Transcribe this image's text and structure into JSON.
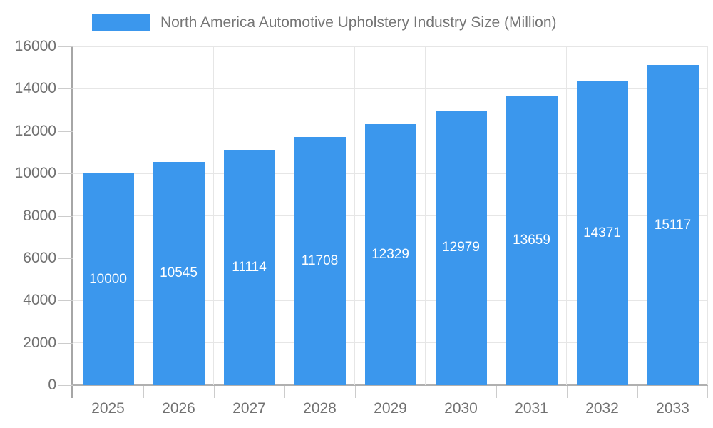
{
  "legend": {
    "label": "North America Automotive Upholstery Industry Size (Million)"
  },
  "chart_data": {
    "type": "bar",
    "title": "North America Automotive Upholstery Industry Size (Million)",
    "categories": [
      "2025",
      "2026",
      "2027",
      "2028",
      "2029",
      "2030",
      "2031",
      "2032",
      "2033"
    ],
    "values": [
      10000,
      10545,
      11114,
      11708,
      12329,
      12979,
      13659,
      14371,
      15117
    ],
    "value_labels": [
      "10000",
      "10545",
      "11114",
      "11708",
      "12329",
      "12979",
      "13659",
      "14371",
      "15117"
    ],
    "xlabel": "",
    "ylabel": "",
    "ylim": [
      0,
      16000
    ],
    "ytick_step": 2000,
    "yticks": [
      0,
      2000,
      4000,
      6000,
      8000,
      10000,
      12000,
      14000,
      16000
    ],
    "grid": true,
    "legend_position": "top"
  },
  "colors": {
    "bar": "#3b97ed",
    "grid": "#e6e6e6",
    "axis_line": "#a6a6a6",
    "tick": "#cccccc",
    "axis_text": "#717171",
    "legend_text": "#757575",
    "value_text": "#ffffff",
    "background": "#ffffff"
  }
}
